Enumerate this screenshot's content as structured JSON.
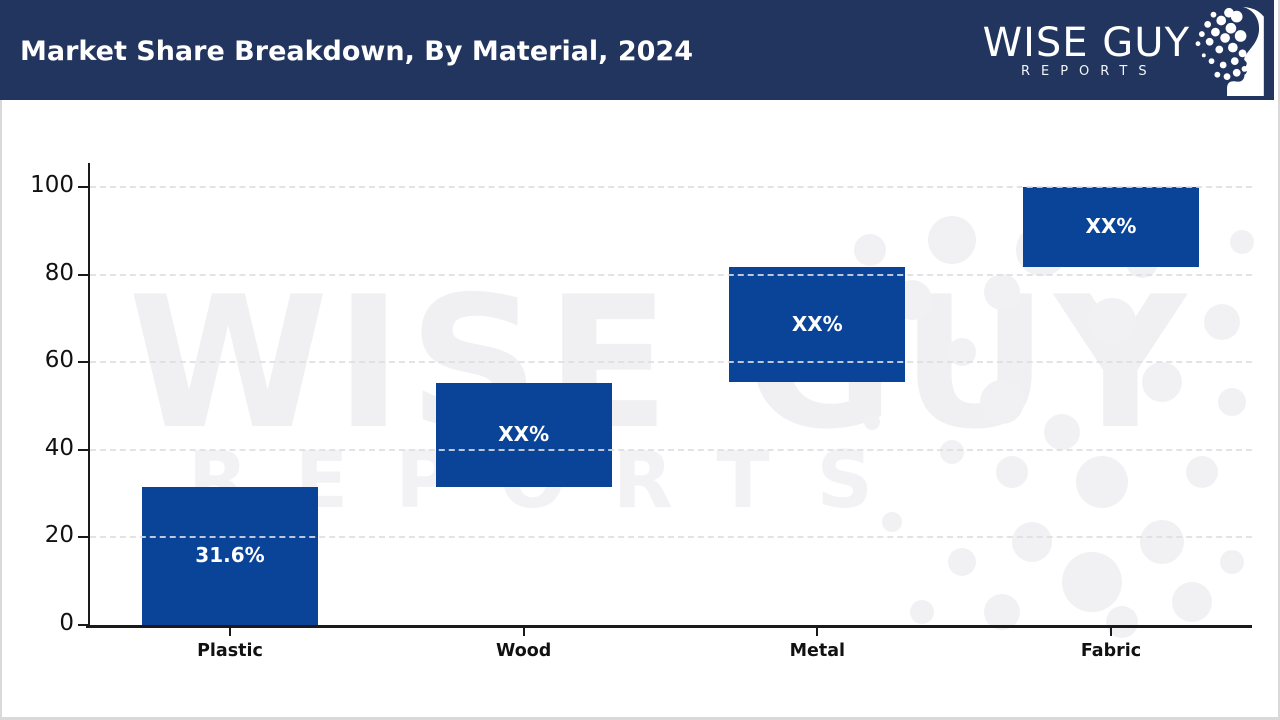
{
  "header": {
    "title": "Market Share Breakdown, By Material, 2024",
    "logo": {
      "line1": "WISE GUY",
      "line2": "REPORTS"
    }
  },
  "watermark": {
    "line1": "WISE GUY",
    "line2": "REPORTS"
  },
  "chart_data": {
    "type": "bar",
    "variant": "waterfall",
    "title": "Market Share Breakdown, By Material, 2024",
    "categories": [
      "Plastic",
      "Wood",
      "Metal",
      "Fabric"
    ],
    "segments": [
      {
        "category": "Plastic",
        "start": 0,
        "end": 31.6,
        "label": "31.6%"
      },
      {
        "category": "Wood",
        "start": 31.6,
        "end": 55.3,
        "label": "XX%"
      },
      {
        "category": "Metal",
        "start": 55.4,
        "end": 81.7,
        "label": "XX%"
      },
      {
        "category": "Fabric",
        "start": 81.8,
        "end": 100,
        "label": "XX%"
      }
    ],
    "xlabel": "",
    "ylabel": "",
    "yticks": [
      0,
      20,
      40,
      60,
      80,
      100
    ],
    "ylim": [
      0,
      104.5
    ],
    "grid": "horizontal-dashed-drawn-above-bars",
    "legend": "none",
    "bar_color": "#0a4499",
    "bar_label_color": "#ffffff",
    "axis_color": "#1a1a1a"
  },
  "colors": {
    "header_bg": "#22355f",
    "page_bg": "#ffffff",
    "frame_border": "#d9d9d9",
    "watermark": "#f0f0f3"
  }
}
